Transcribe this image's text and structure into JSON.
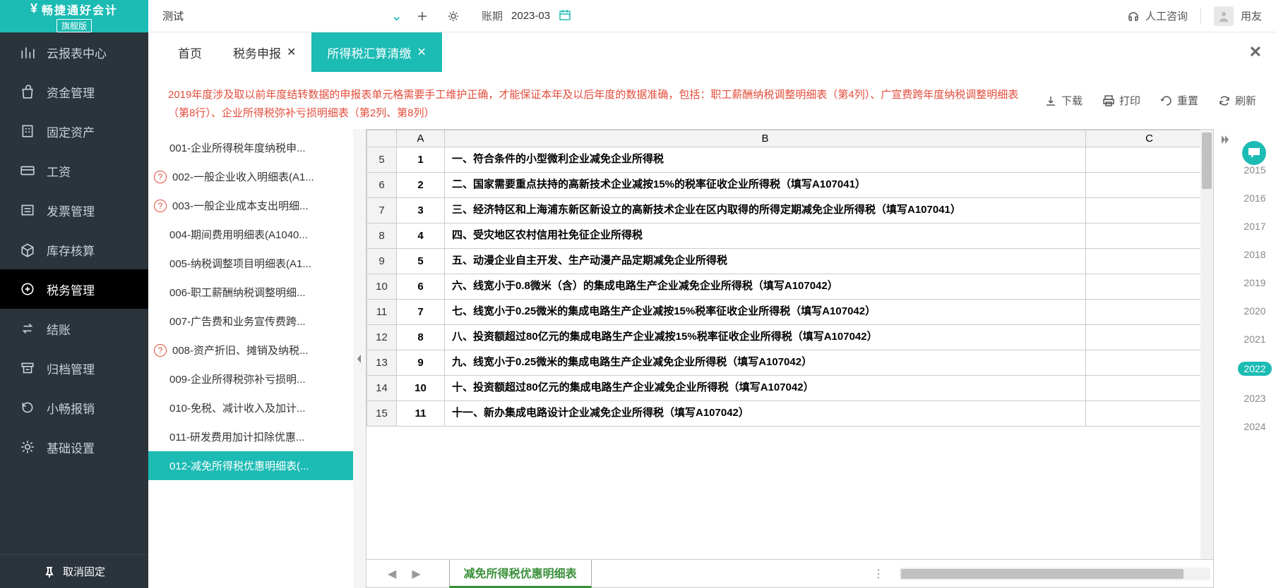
{
  "colors": {
    "accent": "#1cbbb4",
    "warn": "#e34d3c",
    "sidebar_bg": "#2b333b",
    "sidebar_active": "#000000"
  },
  "brand": {
    "name": "畅捷通好会计",
    "edition": "旗舰版"
  },
  "sidebar": {
    "items": [
      {
        "label": "云报表中心",
        "icon": "chart"
      },
      {
        "label": "资金管理",
        "icon": "bag"
      },
      {
        "label": "固定资产",
        "icon": "building"
      },
      {
        "label": "工资",
        "icon": "card"
      },
      {
        "label": "发票管理",
        "icon": "receipt"
      },
      {
        "label": "库存核算",
        "icon": "box"
      },
      {
        "label": "税务管理",
        "icon": "tax",
        "active": true
      },
      {
        "label": "结账",
        "icon": "swap"
      },
      {
        "label": "归档管理",
        "icon": "archive"
      },
      {
        "label": "小畅报销",
        "icon": "refresh"
      },
      {
        "label": "基础设置",
        "icon": "gear"
      }
    ],
    "footer": "取消固定"
  },
  "topbar": {
    "org": "测试",
    "period_label": "账期",
    "period_value": "2023-03",
    "consult": "人工咨询",
    "user": "用友"
  },
  "tabs": {
    "items": [
      {
        "label": "首页",
        "closable": false
      },
      {
        "label": "税务申报",
        "closable": true
      },
      {
        "label": "所得税汇算清缴",
        "closable": true,
        "active": true
      }
    ]
  },
  "notice": "2019年度涉及取以前年度结转数据的申报表单元格需要手工维护正确，才能保证本年及以后年度的数据准确，包括：职工薪酬纳税调整明细表（第4列）、广宣费跨年度纳税调整明细表（第8行）、企业所得税弥补亏损明细表（第2列、第8列）",
  "actions": {
    "download": "下载",
    "print": "打印",
    "reset": "重置",
    "refresh": "刷新"
  },
  "forms": [
    {
      "label": "001-企业所得税年度纳税申...",
      "warn": false
    },
    {
      "label": "002-一般企业收入明细表(A1...",
      "warn": true
    },
    {
      "label": "003-一般企业成本支出明细...",
      "warn": true
    },
    {
      "label": "004-期间费用明细表(A1040...",
      "warn": false
    },
    {
      "label": "005-纳税调整项目明细表(A1...",
      "warn": false
    },
    {
      "label": "006-职工薪酬纳税调整明细...",
      "warn": false
    },
    {
      "label": "007-广告费和业务宣传费跨...",
      "warn": false
    },
    {
      "label": "008-资产折旧、摊销及纳税...",
      "warn": true
    },
    {
      "label": "009-企业所得税弥补亏损明...",
      "warn": false
    },
    {
      "label": "010-免税、减计收入及加计...",
      "warn": false
    },
    {
      "label": "011-研发费用加计扣除优惠...",
      "warn": false
    },
    {
      "label": "012-减免所得税优惠明细表(...",
      "warn": false,
      "active": true
    }
  ],
  "sheet": {
    "columns": [
      "A",
      "B",
      "C"
    ],
    "rows": [
      {
        "n": "5",
        "a": "1",
        "b": "一、符合条件的小型微利企业减免企业所得税"
      },
      {
        "n": "6",
        "a": "2",
        "b": "二、国家需要重点扶持的高新技术企业减按15%的税率征收企业所得税（填写A107041）"
      },
      {
        "n": "7",
        "a": "3",
        "b": "三、经济特区和上海浦东新区新设立的高新技术企业在区内取得的所得定期减免企业所得税（填写A107041）"
      },
      {
        "n": "8",
        "a": "4",
        "b": "四、受灾地区农村信用社免征企业所得税"
      },
      {
        "n": "9",
        "a": "5",
        "b": "五、动漫企业自主开发、生产动漫产品定期减免企业所得税"
      },
      {
        "n": "10",
        "a": "6",
        "b": "六、线宽小于0.8微米（含）的集成电路生产企业减免企业所得税（填写A107042）"
      },
      {
        "n": "11",
        "a": "7",
        "b": "七、线宽小于0.25微米的集成电路生产企业减按15%税率征收企业所得税（填写A107042）"
      },
      {
        "n": "12",
        "a": "8",
        "b": "八、投资额超过80亿元的集成电路生产企业减按15%税率征收企业所得税（填写A107042）"
      },
      {
        "n": "13",
        "a": "9",
        "b": "九、线宽小于0.25微米的集成电路生产企业减免企业所得税（填写A107042）"
      },
      {
        "n": "14",
        "a": "10",
        "b": "十、投资额超过80亿元的集成电路生产企业减免企业所得税（填写A107042）"
      },
      {
        "n": "15",
        "a": "11",
        "b": "十一、新办集成电路设计企业减免企业所得税（填写A107042）"
      }
    ],
    "tab_name": "减免所得税优惠明细表"
  },
  "years": {
    "items": [
      "2015",
      "2016",
      "2017",
      "2018",
      "2019",
      "2020",
      "2021",
      "2022",
      "2023",
      "2024"
    ],
    "current": "2022"
  }
}
